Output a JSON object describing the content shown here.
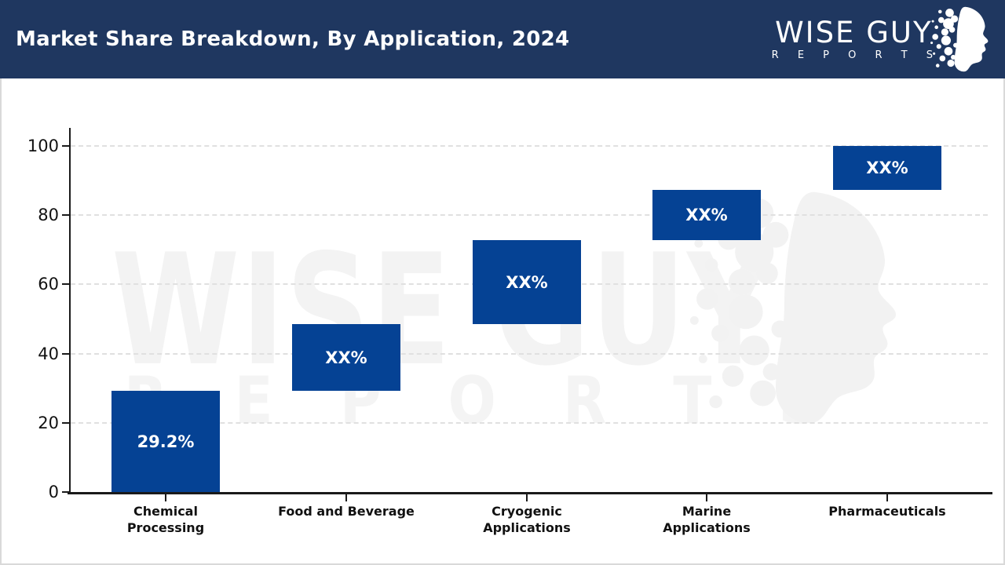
{
  "header": {
    "title": "Market Share Breakdown, By Application, 2024",
    "logo": {
      "line1": "WISE GUY",
      "line2": "R E P O R T S"
    }
  },
  "watermark": {
    "line1": "WISE GUY",
    "line2": "R E P O R T S"
  },
  "colors": {
    "header_bg": "#1f3760",
    "bar": "#054294",
    "grid": "#e0e0e0",
    "axis": "#1a1a1a",
    "bar_label": "#ffffff",
    "watermark": "#f2f2f2",
    "frame": "#d9d9d9"
  },
  "chart_data": {
    "type": "bar",
    "subtype": "waterfall",
    "title": "Market Share Breakdown, By Application, 2024",
    "categories": [
      "Chemical Processing",
      "Food and Beverage",
      "Cryogenic Applications",
      "Marine Applications",
      "Pharmaceuticals"
    ],
    "category_lines": [
      [
        "Chemical",
        "Processing"
      ],
      [
        "Food and Beverage"
      ],
      [
        "Cryogenic",
        "Applications"
      ],
      [
        "Marine",
        "Applications"
      ],
      [
        "Pharmaceuticals"
      ]
    ],
    "segments": [
      {
        "category": "Chemical Processing",
        "start": 0,
        "end": 29.2,
        "label": "29.2%"
      },
      {
        "category": "Food and Beverage",
        "start": 29.2,
        "end": 48.5,
        "label": "XX%"
      },
      {
        "category": "Cryogenic Applications",
        "start": 48.5,
        "end": 72.8,
        "label": "XX%"
      },
      {
        "category": "Marine Applications",
        "start": 72.8,
        "end": 87.2,
        "label": "XX%"
      },
      {
        "category": "Pharmaceuticals",
        "start": 87.2,
        "end": 100,
        "label": "XX%"
      }
    ],
    "xlabel": "",
    "ylabel": "",
    "ylim": [
      0,
      100
    ],
    "y_ticks": [
      0,
      20,
      40,
      60,
      80,
      100
    ],
    "grid": "horizontal-dashed",
    "legend": "none",
    "bar_color": "#054294"
  }
}
